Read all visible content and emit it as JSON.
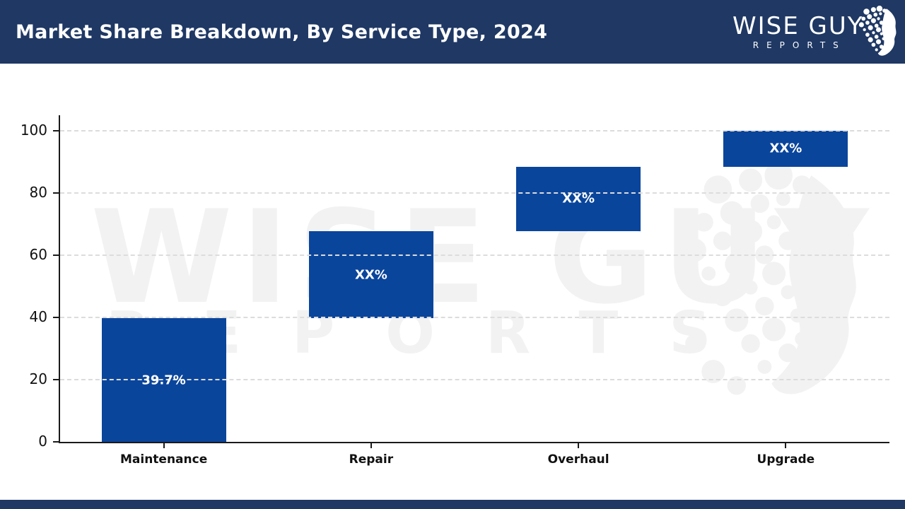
{
  "header": {
    "title": "Market Share Breakdown, By Service Type, 2024"
  },
  "logo": {
    "line1": "WISE GUY",
    "line2": "REPORTS"
  },
  "watermark": {
    "line1": "WISE GUY",
    "line2": "REPORTS"
  },
  "colors": {
    "header_bg": "#1f3864",
    "footer_bg": "#1f3864",
    "bar": "#0a459c",
    "bar_label": "#ffffff",
    "grid": "#dcdcdc",
    "axis": "#1a1a1a",
    "watermark": "#f2f2f2"
  },
  "chart_data": {
    "type": "bar",
    "subtype": "waterfall",
    "title": "Market Share Breakdown, By Service Type, 2024",
    "categories": [
      "Maintenance",
      "Repair",
      "Overhaul",
      "Upgrade"
    ],
    "segments": [
      {
        "category": "Maintenance",
        "start": 0,
        "end": 39.7,
        "label": "39.7%"
      },
      {
        "category": "Repair",
        "start": 39.7,
        "end": 67.7,
        "label": "XX%"
      },
      {
        "category": "Overhaul",
        "start": 67.7,
        "end": 88.5,
        "label": "XX%"
      },
      {
        "category": "Upgrade",
        "start": 88.5,
        "end": 100,
        "label": "XX%"
      }
    ],
    "yticks": [
      0,
      20,
      40,
      60,
      80,
      100
    ],
    "ylim": [
      0,
      105
    ],
    "xlabel": "",
    "ylabel": "",
    "grid": "horizontal-dashed",
    "legend": "none",
    "bar_color": "#0a459c",
    "value_label_color": "#ffffff",
    "note": "XX% labels are redacted values in the source image"
  }
}
